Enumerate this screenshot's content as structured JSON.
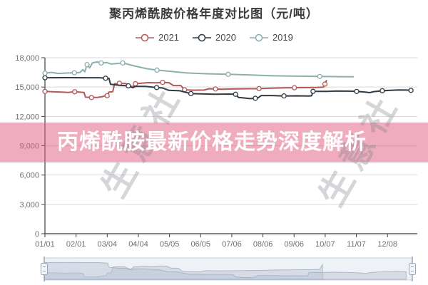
{
  "title": "聚丙烯酰胺价格年度对比图（元/吨）",
  "banner": {
    "text": "丙烯酰胺最新价格走势深度解析"
  },
  "watermark": {
    "text": "生意社"
  },
  "colors": {
    "banner_bg": "#de5f82",
    "banner_text": "#ffffff",
    "watermark": "#7d848c",
    "grid": "#d9d9d9",
    "axis": "#3f3f3f",
    "tick_label": "#6e6e6e",
    "datazoom_fill": "#eef1f6",
    "datazoom_border": "#c6cfda",
    "datazoom_silhouette": "#b7c2d2"
  },
  "chart_data": {
    "type": "line",
    "title": "聚丙烯酰胺价格年度对比图（元/吨）",
    "unit": "元/吨",
    "xlabel": "",
    "ylabel": "",
    "ylim": [
      0,
      18000
    ],
    "y_tick_values": [
      0,
      3000,
      6000,
      9000,
      12000,
      15000,
      18000
    ],
    "y_ticks": [
      "0",
      "3,000",
      "6,000",
      "9,000",
      "12,000",
      "15,000",
      "18,000"
    ],
    "x_ticks": [
      "01/01",
      "02/01",
      "03/04",
      "04/04",
      "05/05",
      "06/05",
      "07/06",
      "08/06",
      "09/06",
      "10/07",
      "11/07",
      "12/08"
    ],
    "grid": true,
    "legend_position": "top",
    "series": [
      {
        "name": "2021",
        "color": "#b25957",
        "points": [
          [
            0.0,
            14550
          ],
          [
            0.02,
            14520
          ],
          [
            0.045,
            14480
          ],
          [
            0.062,
            14450
          ],
          [
            0.08,
            14520
          ],
          [
            0.095,
            14470
          ],
          [
            0.105,
            14450
          ],
          [
            0.109,
            13960
          ],
          [
            0.125,
            13930
          ],
          [
            0.14,
            13930
          ],
          [
            0.152,
            14000
          ],
          [
            0.16,
            14080
          ],
          [
            0.167,
            14120
          ],
          [
            0.172,
            14480
          ],
          [
            0.182,
            14520
          ],
          [
            0.187,
            15340
          ],
          [
            0.2,
            15380
          ],
          [
            0.218,
            15360
          ],
          [
            0.228,
            15120
          ],
          [
            0.236,
            15020
          ],
          [
            0.243,
            15340
          ],
          [
            0.26,
            15400
          ],
          [
            0.278,
            15450
          ],
          [
            0.297,
            15430
          ],
          [
            0.316,
            15470
          ],
          [
            0.333,
            15440
          ],
          [
            0.345,
            15160
          ],
          [
            0.365,
            15150
          ],
          [
            0.375,
            14720
          ],
          [
            0.4,
            14680
          ],
          [
            0.427,
            14690
          ],
          [
            0.441,
            14830
          ],
          [
            0.458,
            14800
          ],
          [
            0.477,
            14770
          ],
          [
            0.505,
            14800
          ],
          [
            0.54,
            14820
          ],
          [
            0.575,
            14840
          ],
          [
            0.605,
            14880
          ],
          [
            0.625,
            14900
          ],
          [
            0.645,
            14920
          ],
          [
            0.67,
            14930
          ],
          [
            0.7,
            14950
          ],
          [
            0.73,
            14960
          ],
          [
            0.748,
            15000
          ],
          [
            0.752,
            15300
          ],
          [
            0.756,
            15660
          ]
        ]
      },
      {
        "name": "2020",
        "color": "#2f3a44",
        "points": [
          [
            0.0,
            15950
          ],
          [
            0.06,
            15960
          ],
          [
            0.11,
            15950
          ],
          [
            0.147,
            15950
          ],
          [
            0.163,
            15900
          ],
          [
            0.172,
            15880
          ],
          [
            0.176,
            15280
          ],
          [
            0.2,
            15180
          ],
          [
            0.224,
            15120
          ],
          [
            0.236,
            14930
          ],
          [
            0.243,
            15060
          ],
          [
            0.27,
            15060
          ],
          [
            0.3,
            14950
          ],
          [
            0.316,
            14900
          ],
          [
            0.333,
            14660
          ],
          [
            0.362,
            14620
          ],
          [
            0.392,
            14330
          ],
          [
            0.42,
            14300
          ],
          [
            0.455,
            14270
          ],
          [
            0.495,
            14280
          ],
          [
            0.512,
            14260
          ],
          [
            0.52,
            13930
          ],
          [
            0.535,
            13880
          ],
          [
            0.55,
            13820
          ],
          [
            0.565,
            13850
          ],
          [
            0.573,
            13910
          ],
          [
            0.581,
            14130
          ],
          [
            0.61,
            14130
          ],
          [
            0.642,
            14090
          ],
          [
            0.676,
            14100
          ],
          [
            0.71,
            14090
          ],
          [
            0.716,
            14110
          ],
          [
            0.72,
            14560
          ],
          [
            0.757,
            14560
          ],
          [
            0.783,
            14600
          ],
          [
            0.814,
            14580
          ],
          [
            0.837,
            14550
          ],
          [
            0.86,
            14490
          ],
          [
            0.872,
            14430
          ],
          [
            0.883,
            14530
          ],
          [
            0.906,
            14620
          ],
          [
            0.929,
            14660
          ],
          [
            0.952,
            14700
          ],
          [
            0.971,
            14690
          ],
          [
            0.983,
            14660
          ]
        ]
      },
      {
        "name": "2019",
        "color": "#8aafaf",
        "points": [
          [
            0.0,
            16420
          ],
          [
            0.017,
            16500
          ],
          [
            0.036,
            16390
          ],
          [
            0.059,
            16430
          ],
          [
            0.079,
            16460
          ],
          [
            0.094,
            16490
          ],
          [
            0.102,
            16780
          ],
          [
            0.107,
            16560
          ],
          [
            0.113,
            17300
          ],
          [
            0.12,
            16950
          ],
          [
            0.128,
            17480
          ],
          [
            0.14,
            17560
          ],
          [
            0.151,
            17460
          ],
          [
            0.167,
            17500
          ],
          [
            0.178,
            17350
          ],
          [
            0.193,
            17410
          ],
          [
            0.209,
            17460
          ],
          [
            0.228,
            17280
          ],
          [
            0.251,
            17060
          ],
          [
            0.274,
            16870
          ],
          [
            0.301,
            16730
          ],
          [
            0.339,
            16590
          ],
          [
            0.381,
            16440
          ],
          [
            0.431,
            16360
          ],
          [
            0.492,
            16300
          ],
          [
            0.554,
            16230
          ],
          [
            0.615,
            16150
          ],
          [
            0.676,
            16110
          ],
          [
            0.738,
            16080
          ],
          [
            0.79,
            16060
          ],
          [
            0.828,
            16050
          ]
        ]
      }
    ]
  }
}
